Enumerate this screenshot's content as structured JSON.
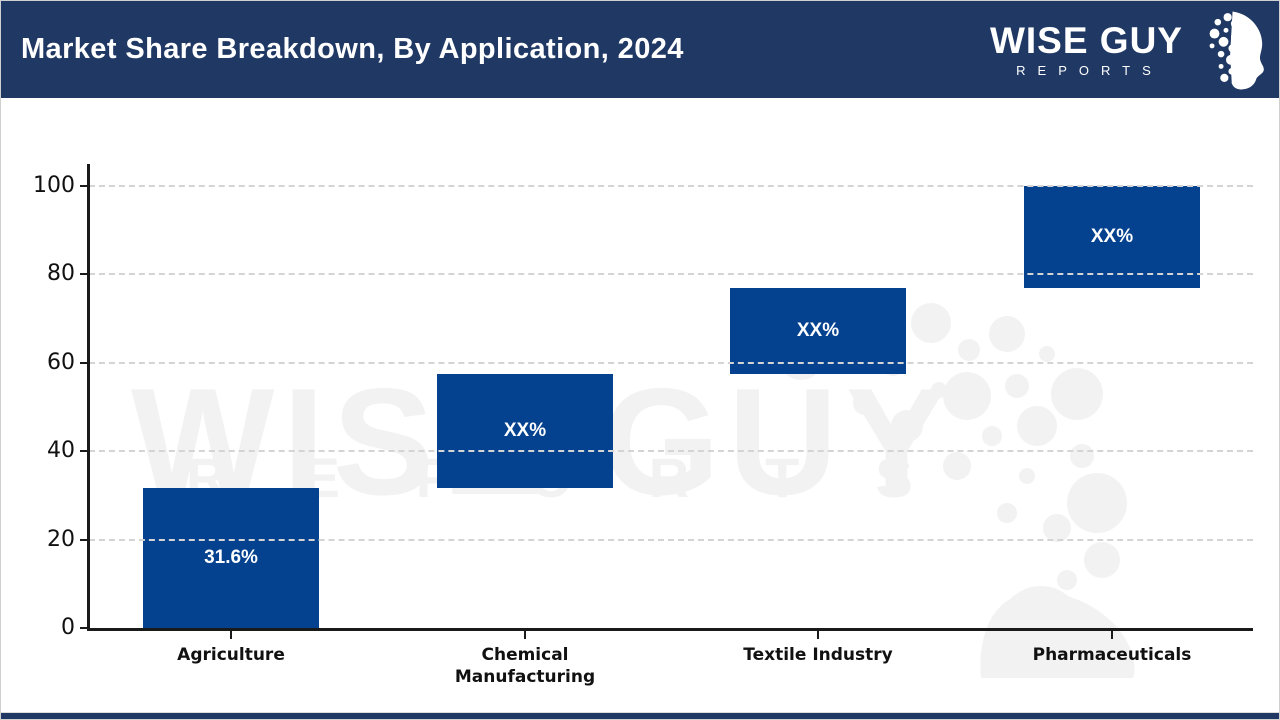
{
  "header": {
    "title": "Market Share Breakdown, By Application, 2024",
    "logo": {
      "primary": "WISE GUY",
      "secondary": "REPORTS"
    }
  },
  "watermark": {
    "primary": "WISE GUY",
    "secondary": "REPORTS"
  },
  "chart_data": {
    "type": "bar",
    "subtype": "waterfall",
    "title": "Market Share Breakdown, By Application, 2024",
    "xlabel": "",
    "ylabel": "",
    "categories": [
      "Agriculture",
      "Chemical Manufacturing",
      "Textile Industry",
      "Pharmaceuticals"
    ],
    "segments": [
      {
        "category": "Agriculture",
        "start": 0,
        "end": 31.6,
        "value": 31.6,
        "label": "31.6%"
      },
      {
        "category": "Chemical Manufacturing",
        "start": 31.6,
        "end": 57.5,
        "value": 25.9,
        "label": "XX%"
      },
      {
        "category": "Textile Industry",
        "start": 57.5,
        "end": 77.0,
        "value": 19.5,
        "label": "XX%"
      },
      {
        "category": "Pharmaceuticals",
        "start": 77.0,
        "end": 100.0,
        "value": 23.0,
        "label": "XX%"
      }
    ],
    "yticks": [
      0,
      20,
      40,
      60,
      80,
      100
    ],
    "ylim": [
      0,
      105
    ],
    "grid": "horizontal-dashed",
    "grid_above_bars": true,
    "legend": "none"
  },
  "colors": {
    "header_bg": "#1f3864",
    "footer_bg": "#1f3864",
    "bar": "#04418f",
    "bar_label": "#ffffff",
    "grid": "#d4d4d4",
    "axis": "#1a1a1a",
    "watermark": "#f2f2f2"
  }
}
